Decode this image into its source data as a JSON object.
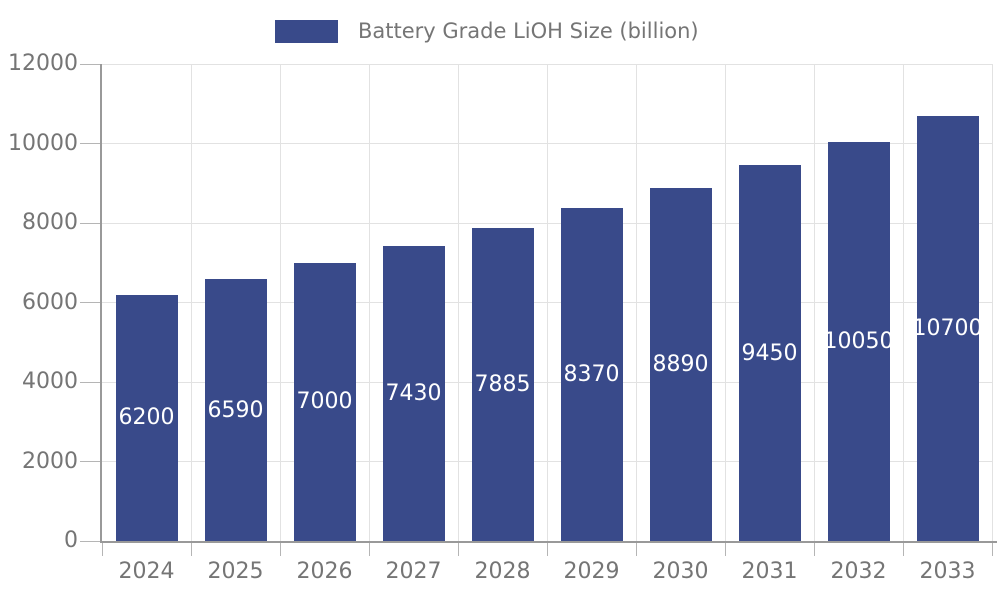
{
  "chart_data": {
    "type": "bar",
    "legend_label": "Battery Grade LiOH Size (billion)",
    "series": [
      {
        "name": "Battery Grade LiOH Size (billion)",
        "values": [
          6200,
          6590,
          7000,
          7430,
          7885,
          8370,
          8890,
          9450,
          10050,
          10700
        ]
      }
    ],
    "categories": [
      "2024",
      "2025",
      "2026",
      "2027",
      "2028",
      "2029",
      "2030",
      "2031",
      "2032",
      "2033"
    ],
    "xlabel": "",
    "ylabel": "",
    "ylim": [
      0,
      12000
    ],
    "yticks": [
      0,
      2000,
      4000,
      6000,
      8000,
      10000,
      12000
    ],
    "grid": true,
    "legend_position": "top-center",
    "bar_labels_inside_centered": true,
    "colors": {
      "bar": "#394A8A",
      "bar_value_label": "#ffffff",
      "axis_text": "#757575",
      "legend_text": "#757575",
      "grid_line": "#e2e2e2",
      "axis_line": "#999999",
      "tick_mark": "#b5b5b5",
      "background": "#ffffff"
    }
  }
}
